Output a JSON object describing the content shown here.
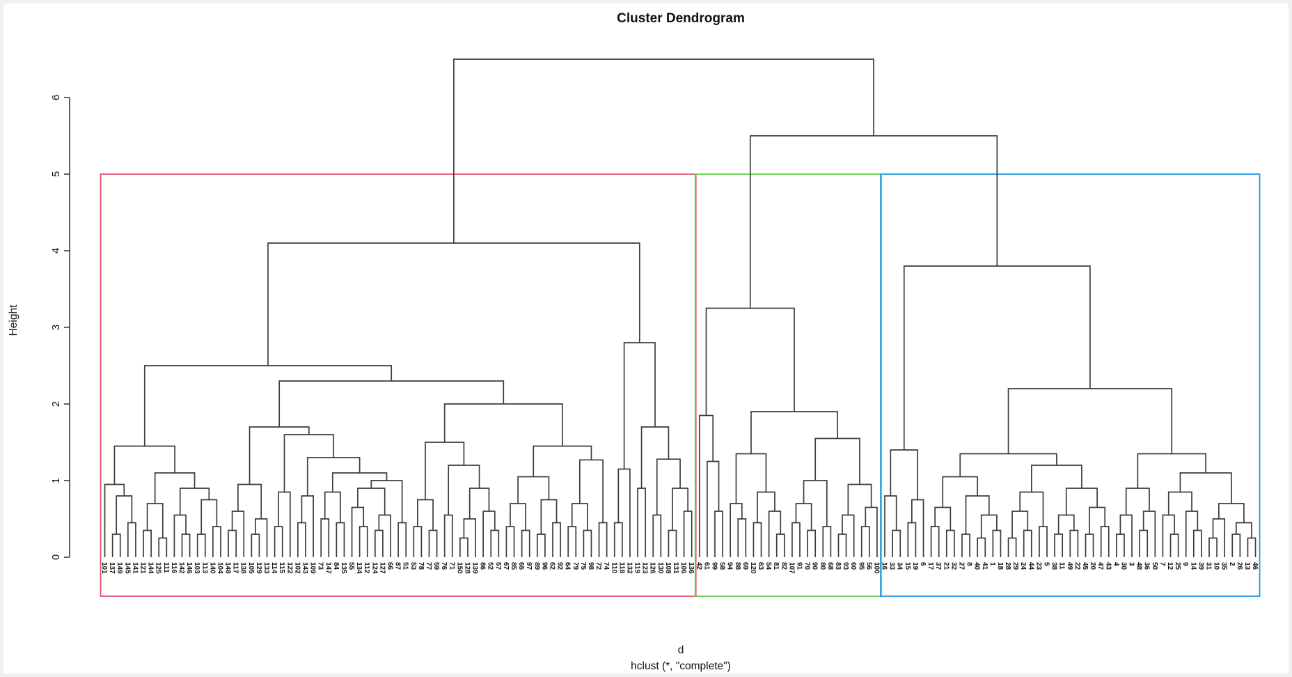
{
  "chart_data": {
    "type": "dendrogram",
    "title": "Cluster Dendrogram",
    "ylabel": "Height",
    "xlabel": "d",
    "xlabel_sub": "hclust (*, \"complete\")",
    "y_axis": {
      "label": "Height",
      "ticks": [
        0,
        1,
        2,
        3,
        4,
        5,
        6
      ]
    },
    "ylim": [
      0,
      6.5
    ],
    "line_color": "#3c3c3c",
    "label_color": "#151515",
    "cut_height": 5.0,
    "clusters": [
      {
        "id": "cluster-1",
        "border_color": "#DF536B",
        "leaf_start": 1,
        "leaf_end": 77
      },
      {
        "id": "cluster-2",
        "border_color": "#61D04F",
        "leaf_start": 78,
        "leaf_end": 101
      },
      {
        "id": "cluster-3",
        "border_color": "#2297E6",
        "leaf_start": 102,
        "leaf_end": 150
      }
    ],
    "leaf_order": [
      "101",
      "137",
      "149",
      "145",
      "141",
      "121",
      "144",
      "125",
      "111",
      "116",
      "142",
      "146",
      "103",
      "113",
      "140",
      "104",
      "148",
      "117",
      "138",
      "105",
      "129",
      "133",
      "114",
      "115",
      "122",
      "102",
      "143",
      "109",
      "73",
      "147",
      "84",
      "135",
      "55",
      "134",
      "112",
      "124",
      "127",
      "66",
      "87",
      "51",
      "53",
      "78",
      "77",
      "59",
      "76",
      "71",
      "150",
      "128",
      "139",
      "86",
      "52",
      "57",
      "67",
      "85",
      "65",
      "97",
      "89",
      "96",
      "62",
      "92",
      "64",
      "79",
      "75",
      "98",
      "72",
      "74",
      "110",
      "118",
      "132",
      "119",
      "123",
      "126",
      "130",
      "108",
      "131",
      "106",
      "136",
      "42",
      "61",
      "99",
      "58",
      "94",
      "88",
      "69",
      "120",
      "63",
      "54",
      "81",
      "82",
      "107",
      "91",
      "70",
      "90",
      "80",
      "68",
      "83",
      "93",
      "60",
      "95",
      "56",
      "100",
      "16",
      "33",
      "34",
      "15",
      "19",
      "6",
      "17",
      "37",
      "21",
      "32",
      "27",
      "8",
      "40",
      "41",
      "1",
      "18",
      "28",
      "29",
      "24",
      "44",
      "23",
      "5",
      "38",
      "11",
      "49",
      "22",
      "45",
      "20",
      "47",
      "43",
      "4",
      "30",
      "3",
      "48",
      "36",
      "50",
      "7",
      "12",
      "25",
      "9",
      "14",
      "39",
      "31",
      "10",
      "35",
      "2",
      "26",
      "13",
      "46"
    ],
    "tree": [
      6.5,
      [
        4.1,
        [
          2.5,
          [
            1.45,
            [
              0.95,
              "101",
              [
                0.8,
                [
                  0.3,
                  "137",
                  "149"
                ],
                [
                  0.45,
                  "145",
                  "141"
                ]
              ]
            ],
            [
              1.1,
              [
                0.7,
                [
                  0.35,
                  "121",
                  "144"
                ],
                [
                  0.25,
                  "125",
                  "111"
                ]
              ],
              [
                0.9,
                [
                  0.55,
                  "116",
                  [
                    0.3,
                    "142",
                    "146"
                  ]
                ],
                [
                  0.75,
                  [
                    0.3,
                    "103",
                    "113"
                  ],
                  [
                    0.4,
                    "140",
                    "104"
                  ]
                ]
              ]
            ]
          ],
          [
            2.3,
            [
              1.7,
              [
                0.95,
                [
                  0.6,
                  [
                    0.35,
                    "148",
                    "117"
                  ],
                  "138"
                ],
                [
                  0.5,
                  [
                    0.3,
                    "105",
                    "129"
                  ],
                  "133"
                ]
              ],
              [
                1.6,
                [
                  0.85,
                  [
                    0.4,
                    "114",
                    "115"
                  ],
                  "122"
                ],
                [
                  1.3,
                  [
                    0.8,
                    [
                      0.45,
                      "102",
                      "143"
                    ],
                    "109"
                  ],
                  [
                    1.1,
                    [
                      0.85,
                      [
                        0.5,
                        "73",
                        "147"
                      ],
                      [
                        0.45,
                        "84",
                        "135"
                      ]
                    ],
                    [
                      1.0,
                      [
                        0.9,
                        [
                          0.65,
                          "55",
                          [
                            0.4,
                            "134",
                            "112"
                          ]
                        ],
                        [
                          0.55,
                          [
                            0.35,
                            "124",
                            "127"
                          ],
                          "66"
                        ]
                      ],
                      [
                        0.45,
                        "87",
                        "51"
                      ]
                    ]
                  ]
                ]
              ]
            ],
            [
              2.0,
              [
                1.5,
                [
                  0.75,
                  [
                    0.4,
                    "53",
                    "78"
                  ],
                  [
                    0.35,
                    "77",
                    "59"
                  ]
                ],
                [
                  1.2,
                  [
                    0.55,
                    "76",
                    "71"
                  ],
                  [
                    0.9,
                    [
                      0.5,
                      [
                        0.25,
                        "150",
                        "128"
                      ],
                      "139"
                    ],
                    [
                      0.6,
                      "86",
                      [
                        0.35,
                        "52",
                        "57"
                      ]
                    ]
                  ]
                ]
              ],
              [
                1.45,
                [
                  1.05,
                  [
                    0.7,
                    [
                      0.4,
                      "67",
                      "85"
                    ],
                    [
                      0.35,
                      "65",
                      "97"
                    ]
                  ],
                  [
                    0.75,
                    [
                      0.3,
                      "89",
                      "96"
                    ],
                    [
                      0.45,
                      "62",
                      "92"
                    ]
                  ]
                ],
                [
                  1.27,
                  [
                    0.7,
                    [
                      0.4,
                      "64",
                      "79"
                    ],
                    [
                      0.35,
                      "75",
                      "98"
                    ]
                  ],
                  [
                    0.45,
                    "72",
                    "74"
                  ]
                ]
              ]
            ]
          ]
        ],
        [
          2.8,
          [
            1.15,
            [
              0.45,
              "110",
              "118"
            ],
            "132"
          ],
          [
            1.7,
            [
              0.9,
              "119",
              "123"
            ],
            [
              1.28,
              [
                0.55,
                "126",
                "130"
              ],
              [
                0.9,
                [
                  0.35,
                  "108",
                  "131"
                ],
                [
                  0.6,
                  "106",
                  "136"
                ]
              ]
            ]
          ]
        ]
      ],
      [
        5.5,
        [
          3.25,
          [
            1.85,
            "42",
            [
              1.25,
              "61",
              [
                0.6,
                "99",
                "58"
              ]
            ]
          ],
          [
            1.9,
            [
              1.35,
              [
                0.7,
                "94",
                [
                  0.5,
                  "88",
                  "69"
                ]
              ],
              [
                0.85,
                [
                  0.45,
                  "120",
                  "63"
                ],
                [
                  0.6,
                  "54",
                  [
                    0.3,
                    "81",
                    "82"
                  ]
                ]
              ]
            ],
            [
              1.55,
              [
                1.0,
                [
                  0.7,
                  [
                    0.45,
                    "107",
                    "91"
                  ],
                  [
                    0.35,
                    "70",
                    "90"
                  ]
                ],
                [
                  0.4,
                  "80",
                  "68"
                ]
              ],
              [
                0.95,
                [
                  0.55,
                  [
                    0.3,
                    "83",
                    "93"
                  ],
                  "60"
                ],
                [
                  0.65,
                  [
                    0.4,
                    "95",
                    "56"
                  ],
                  "100"
                ]
              ]
            ]
          ]
        ],
        [
          3.8,
          [
            1.4,
            [
              0.8,
              "16",
              [
                0.35,
                "33",
                "34"
              ]
            ],
            [
              0.75,
              [
                0.45,
                "15",
                "19"
              ],
              "6"
            ]
          ],
          [
            2.2,
            [
              1.35,
              [
                1.05,
                [
                  0.65,
                  [
                    0.4,
                    "17",
                    "37"
                  ],
                  [
                    0.35,
                    "21",
                    "32"
                  ]
                ],
                [
                  0.8,
                  [
                    0.3,
                    "27",
                    "8"
                  ],
                  [
                    0.55,
                    [
                      0.25,
                      "40",
                      "41"
                    ],
                    [
                      0.35,
                      "1",
                      "18"
                    ]
                  ]
                ]
              ],
              [
                1.2,
                [
                  0.85,
                  [
                    0.6,
                    [
                      0.25,
                      "28",
                      "29"
                    ],
                    [
                      0.35,
                      "24",
                      "44"
                    ]
                  ],
                  [
                    0.4,
                    "23",
                    "5"
                  ]
                ],
                [
                  0.9,
                  [
                    0.55,
                    [
                      0.3,
                      "38",
                      "11"
                    ],
                    [
                      0.35,
                      "49",
                      "22"
                    ]
                  ],
                  [
                    0.65,
                    [
                      0.3,
                      "45",
                      "20"
                    ],
                    [
                      0.4,
                      "47",
                      "43"
                    ]
                  ]
                ]
              ]
            ],
            [
              1.35,
              [
                0.9,
                [
                  0.55,
                  [
                    0.3,
                    "4",
                    "30"
                  ],
                  "3"
                ],
                [
                  0.6,
                  [
                    0.35,
                    "48",
                    "36"
                  ],
                  "50"
                ]
              ],
              [
                1.1,
                [
                  0.85,
                  [
                    0.55,
                    "7",
                    [
                      0.3,
                      "12",
                      "25"
                    ]
                  ],
                  [
                    0.6,
                    "9",
                    [
                      0.35,
                      "14",
                      "39"
                    ]
                  ]
                ],
                [
                  0.7,
                  [
                    0.5,
                    [
                      0.25,
                      "31",
                      "10"
                    ],
                    "35"
                  ],
                  [
                    0.45,
                    [
                      0.3,
                      "2",
                      "26"
                    ],
                    [
                      0.25,
                      "13",
                      "46"
                    ]
                  ]
                ]
              ]
            ]
          ]
        ]
      ]
    ]
  }
}
